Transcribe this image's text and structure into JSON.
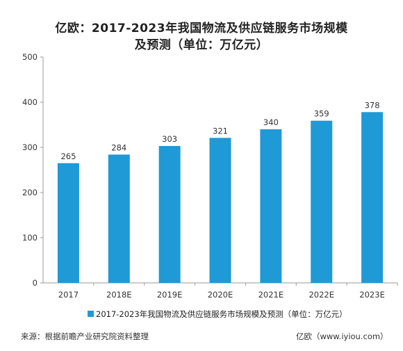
{
  "chart_data": {
    "type": "bar",
    "title_line1": "亿欧：2017-2023年我国物流及供应链服务市场规模",
    "title_line2": "及预测（单位：万亿元）",
    "categories": [
      "2017",
      "2018E",
      "2019E",
      "2020E",
      "2021E",
      "2022E",
      "2023E"
    ],
    "series": [
      {
        "name": "2017-2023年我国物流及供应链服务市场规模及预测（单位：万亿元）",
        "values": [
          265,
          284,
          303,
          321,
          340,
          359,
          378
        ],
        "color": "#1f9ad6"
      }
    ],
    "ylim": [
      0,
      500
    ],
    "yticks": [
      "0",
      "100",
      "200",
      "300",
      "400",
      "500"
    ],
    "grid": false,
    "legend_position": "bottom"
  },
  "footer": {
    "source": "来源：根据前瞻产业研究院资料整理",
    "site": "亿欧（www.iyiou.com）"
  }
}
